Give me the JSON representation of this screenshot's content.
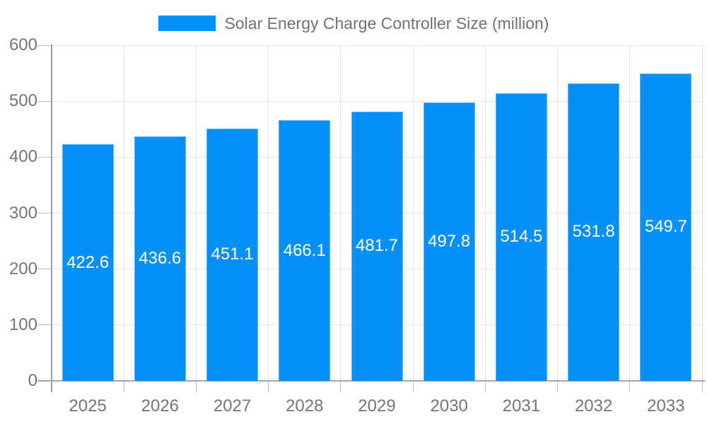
{
  "legend": {
    "label": "Solar Energy Charge Controller Size (million)"
  },
  "chart_data": {
    "type": "bar",
    "title": "Solar Energy Charge Controller Size (million)",
    "categories": [
      "2025",
      "2026",
      "2027",
      "2028",
      "2029",
      "2030",
      "2031",
      "2032",
      "2033"
    ],
    "values": [
      422.6,
      436.6,
      451.1,
      466.1,
      481.7,
      497.8,
      514.5,
      531.8,
      549.7
    ],
    "xlabel": "",
    "ylabel": "",
    "ylim": [
      0,
      600
    ],
    "yticks": [
      0,
      100,
      200,
      300,
      400,
      500,
      600
    ],
    "grid": true,
    "legend_position": "top",
    "bar_color": "#0590f8",
    "bar_border_color": "#5cb4f7",
    "bar_label_color": "#ffffff",
    "axis_text_color": "#757575",
    "grid_color": "#e5e5e5",
    "axis_color": "#9e9e9e"
  }
}
